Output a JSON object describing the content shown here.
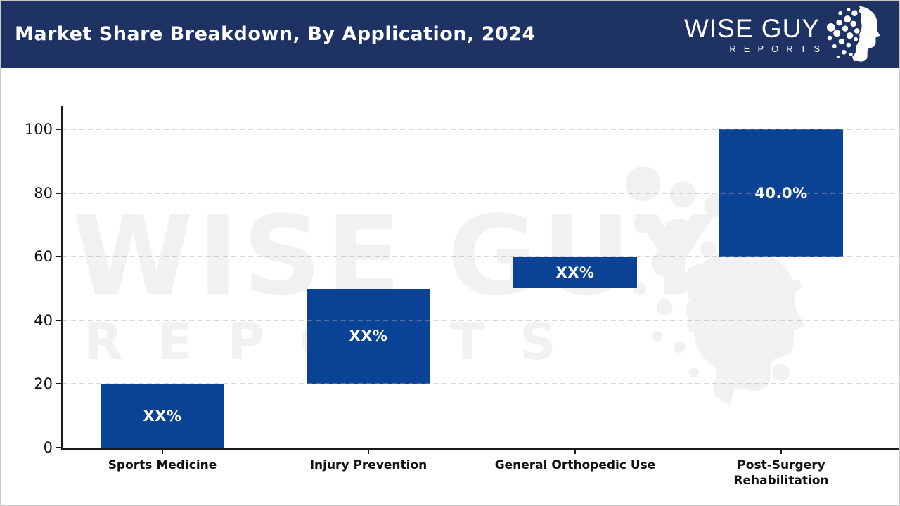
{
  "header": {
    "title": "Market Share Breakdown, By Application, 2024",
    "logo": {
      "line1": "WISE GUY",
      "line2": "REPORTS"
    }
  },
  "watermark": {
    "line1": "WISE GUY",
    "line2": "REPORTS"
  },
  "colors": {
    "header_bg": "#1e3264",
    "bar": "#0a4296",
    "bar_label": "#ffffff",
    "gridline": "#dddddd",
    "watermark": "#f1f1f1",
    "axis": "#1a1a1a"
  },
  "chart_data": {
    "type": "bar",
    "subtype": "waterfall",
    "title": "Market Share Breakdown, By Application, 2024",
    "categories": [
      "Sports Medicine",
      "Injury Prevention",
      "General Orthopedic Use",
      "Post-Surgery Rehabilitation"
    ],
    "series": [
      {
        "name": "Market Share",
        "segments": [
          {
            "category": "Sports Medicine",
            "start": 0,
            "end": 20,
            "label": "XX%"
          },
          {
            "category": "Injury Prevention",
            "start": 20,
            "end": 50,
            "label": "XX%"
          },
          {
            "category": "General Orthopedic Use",
            "start": 50,
            "end": 60,
            "label": "XX%"
          },
          {
            "category": "Post-Surgery Rehabilitation",
            "start": 60,
            "end": 100,
            "label": "40.0%"
          }
        ]
      }
    ],
    "xlabel": "",
    "ylabel": "",
    "ylim": [
      0,
      100
    ],
    "yticks": [
      0,
      20,
      40,
      60,
      80,
      100
    ],
    "grid": "horizontal dashed at yticks, drawn over bars",
    "legend": "none"
  }
}
